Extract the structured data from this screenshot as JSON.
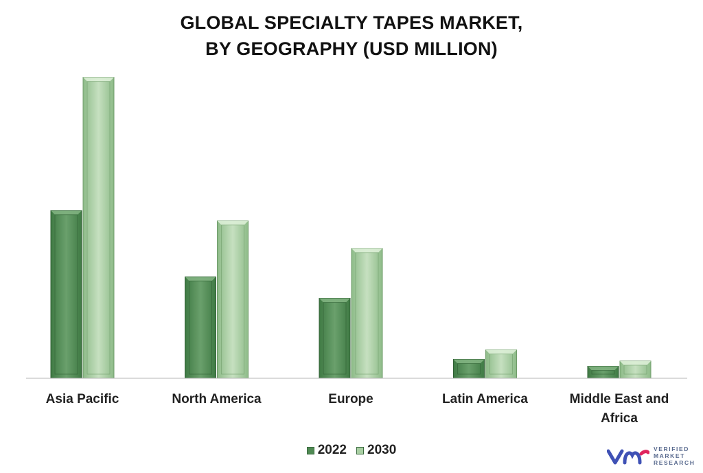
{
  "chart_data": {
    "type": "bar",
    "title_lines": [
      "GLOBAL SPECIALTY TAPES MARKET,",
      "BY GEOGRAPHY (USD MILLION)"
    ],
    "categories": [
      [
        "Asia Pacific"
      ],
      [
        "North America"
      ],
      [
        "Europe"
      ],
      [
        "Latin America"
      ],
      [
        "Middle East and",
        "Africa"
      ]
    ],
    "series": [
      {
        "name": "2022",
        "color": "#4f8a53",
        "values": [
          195,
          118,
          93,
          22,
          14
        ]
      },
      {
        "name": "2030",
        "color": "#a9cfa3",
        "values": [
          350,
          183,
          151,
          33,
          20
        ]
      }
    ],
    "ylim": [
      0,
      400
    ],
    "grid": false,
    "y_axis_shown": false,
    "legend_position": "bottom-center"
  },
  "logo": {
    "lines": [
      "VERIFIED",
      "MARKET",
      "RESEARCH"
    ],
    "colors": [
      "#3f51b5",
      "#e0245e"
    ]
  }
}
